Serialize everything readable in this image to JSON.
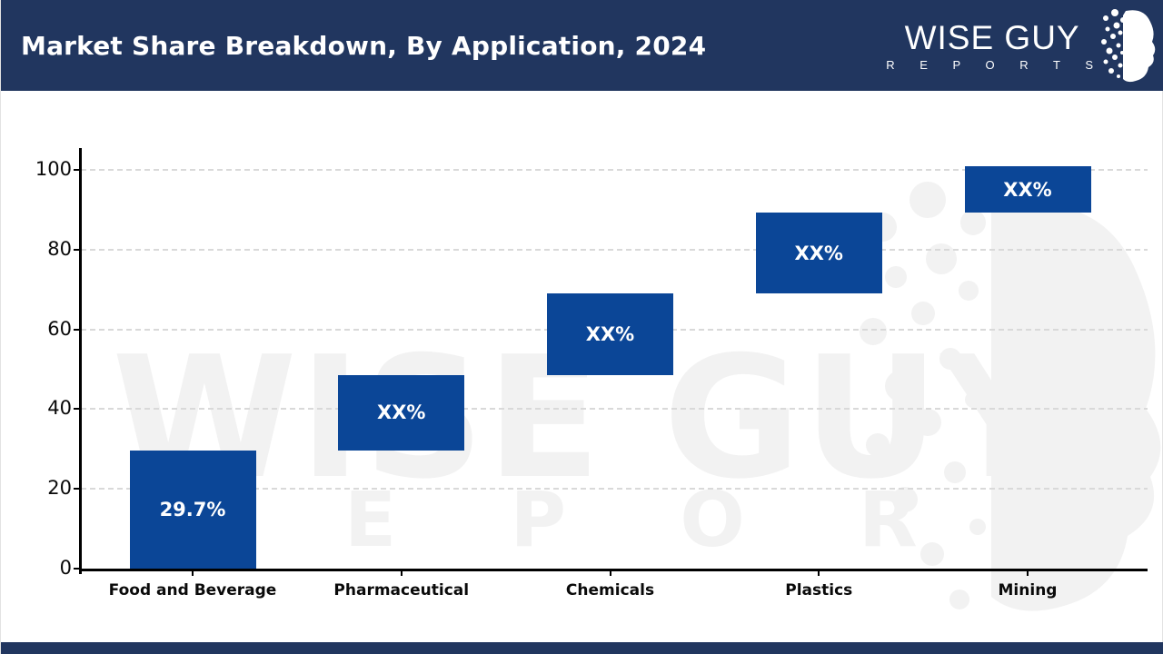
{
  "header": {
    "title": "Market Share Breakdown, By Application, 2024",
    "logo": {
      "line1": "WISE GUY",
      "line2": "R E P O R T S"
    }
  },
  "watermark": {
    "line1": "WISE GUY",
    "line2": "R E P O R T S"
  },
  "colors": {
    "header_bg": "#21365F",
    "footer_bg": "#21365F",
    "bar": "#0B4697",
    "grid": "#D9D9D9",
    "axis": "#000000",
    "value_label": "#FFFFFF",
    "watermark": "#F2F2F2"
  },
  "chart_data": {
    "type": "bar",
    "subtype": "waterfall",
    "title": "Market Share Breakdown, By Application, 2024",
    "xlabel": "",
    "ylabel": "",
    "categories": [
      "Food and Beverage",
      "Pharmaceutical",
      "Chemicals",
      "Plastics",
      "Mining"
    ],
    "segments": [
      {
        "category": "Food and Beverage",
        "start": 0,
        "end": 29.7,
        "label": "29.7%"
      },
      {
        "category": "Pharmaceutical",
        "start": 29.7,
        "end": 48.5,
        "label": "XX%"
      },
      {
        "category": "Chemicals",
        "start": 48.5,
        "end": 69.0,
        "label": "XX%"
      },
      {
        "category": "Plastics",
        "start": 69.0,
        "end": 89.2,
        "label": "XX%"
      },
      {
        "category": "Mining",
        "start": 89.2,
        "end": 100.8,
        "label": "XX%"
      }
    ],
    "y_ticks": [
      0,
      20,
      40,
      60,
      80,
      100
    ],
    "ylim": [
      0,
      105
    ],
    "grid": "horizontal-dashed",
    "legend": "none"
  }
}
